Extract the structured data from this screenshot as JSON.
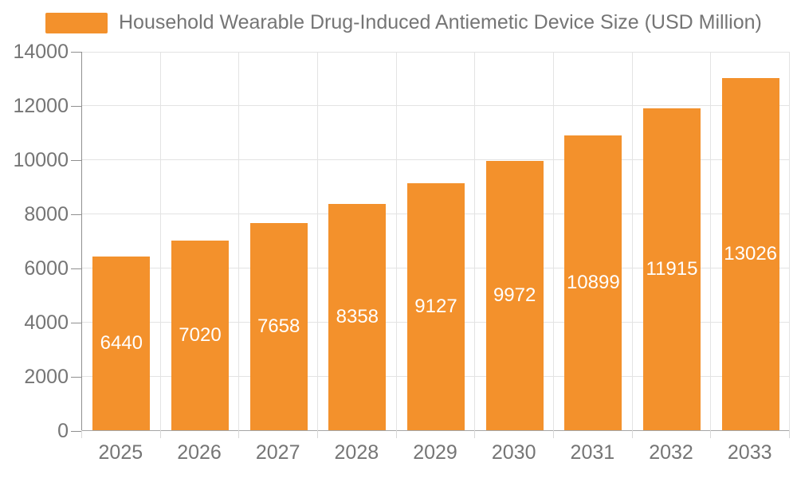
{
  "chart_data": {
    "type": "bar",
    "legend_label": "Household Wearable Drug-Induced Antiemetic Device Size (USD Million)",
    "legend_position": "top-left",
    "categories": [
      "2025",
      "2026",
      "2027",
      "2028",
      "2029",
      "2030",
      "2031",
      "2032",
      "2033"
    ],
    "values": [
      6440,
      7020,
      7658,
      8358,
      9127,
      9972,
      10899,
      11915,
      13026
    ],
    "ylim": [
      0,
      14000
    ],
    "ytick_interval": 2000,
    "yticks": [
      0,
      2000,
      4000,
      6000,
      8000,
      10000,
      12000,
      14000
    ],
    "grid": true,
    "value_label_position": "inside-center",
    "colors": {
      "bar": "#F3912C",
      "bar_value_text": "#FFFFFF",
      "axis_text": "#757575",
      "legend_text": "#757575",
      "axis_line": "#8F8F8F",
      "gridline": "#E3E3E3"
    }
  }
}
